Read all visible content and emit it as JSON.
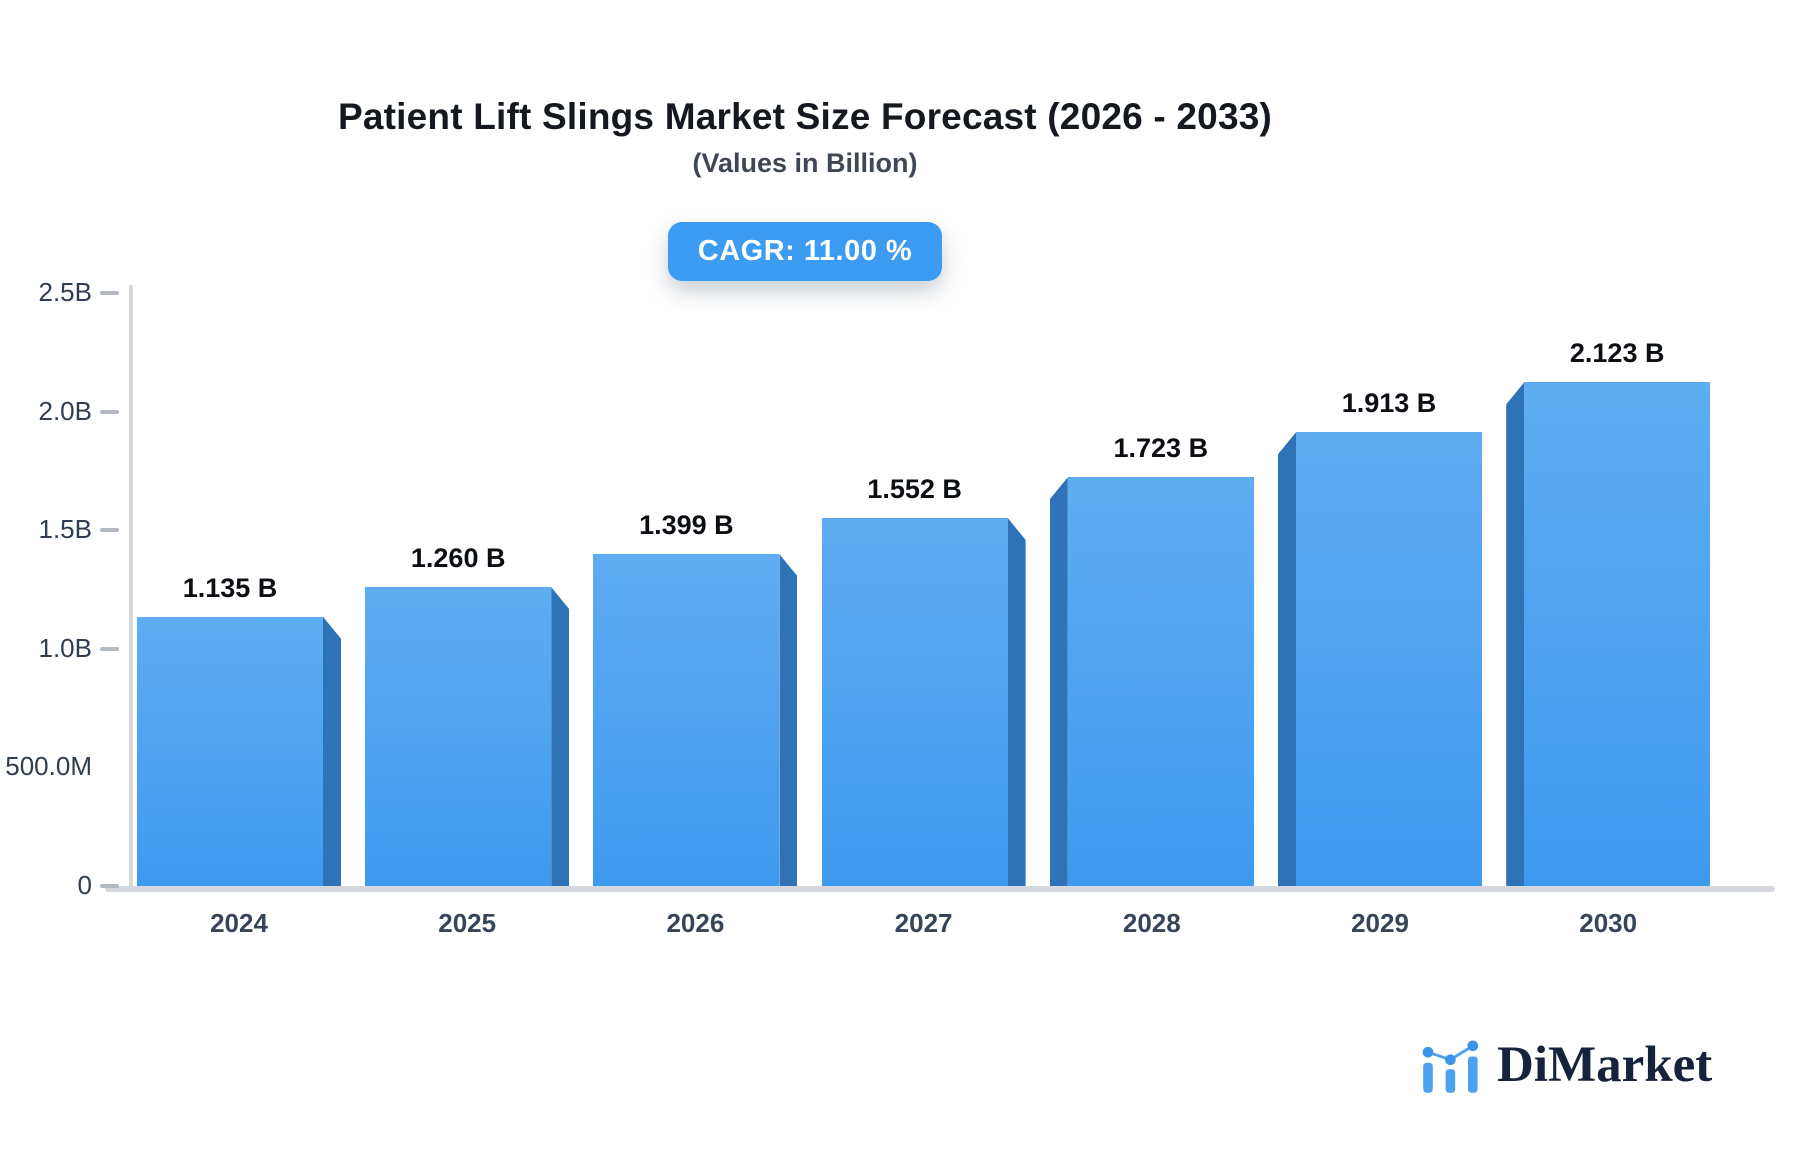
{
  "header": {
    "title": "Patient Lift Slings Market Size Forecast (2026 - 2033)",
    "subtitle": "(Values in Billion)",
    "cagr_label": "CAGR: 11.00 %"
  },
  "chart_data": {
    "type": "bar",
    "categories": [
      "2024",
      "2025",
      "2026",
      "2027",
      "2028",
      "2029",
      "2030"
    ],
    "values": [
      1.135,
      1.26,
      1.399,
      1.552,
      1.723,
      1.913,
      2.123
    ],
    "value_labels": [
      "1.135 B",
      "1.260 B",
      "1.399 B",
      "1.552 B",
      "1.723 B",
      "1.913 B",
      "2.123 B"
    ],
    "title": "Patient Lift Slings Market Size Forecast (2026 - 2033)",
    "subtitle": "(Values in Billion)",
    "ylim": [
      0,
      2.5
    ],
    "grid": false,
    "legend": "none",
    "yticks": [
      {
        "label": "2.5B",
        "value": 2.5,
        "dash": true
      },
      {
        "label": "2.0B",
        "value": 2.0,
        "dash": true
      },
      {
        "label": "1.5B",
        "value": 1.5,
        "dash": true
      },
      {
        "label": "1.0B",
        "value": 1.0,
        "dash": true
      },
      {
        "label": "500.0M",
        "value": 0.5,
        "dash": false
      },
      {
        "label": "0",
        "value": 0.0,
        "dash": true
      }
    ]
  },
  "footer": {
    "logo_text": "DiMarket"
  },
  "colors": {
    "bar_face_top": "#5facf2",
    "bar_face_bottom": "#3e9aef",
    "bar_side": "#2e73b7",
    "badge_bg": "#3b9cf2",
    "axis": "#d5d9de",
    "tick_dash": "#b3bac2",
    "y_label": "#2f3d4f",
    "x_label": "#37445a",
    "value_label": "#0b0e13",
    "logo_navy": "#17223c",
    "logo_blue": "#4da2f0"
  }
}
